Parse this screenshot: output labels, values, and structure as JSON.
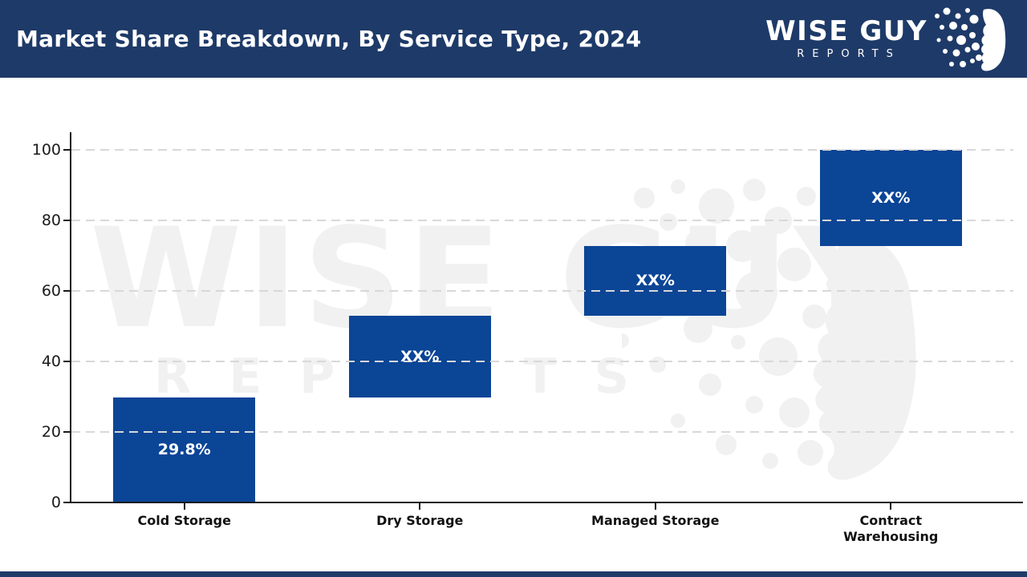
{
  "header": {
    "title": "Market Share Breakdown, By Service Type, 2024",
    "logo": {
      "wordmark": "WISE GUY",
      "subtext": "REPORTS"
    }
  },
  "watermark": {
    "wordmark": "WISE GUY",
    "subtext": "REPORTS"
  },
  "chart_data": {
    "type": "bar",
    "subtype": "waterfall",
    "title": "Market Share Breakdown, By Service Type, 2024",
    "categories": [
      "Cold Storage",
      "Dry Storage",
      "Managed Storage",
      "Contract Warehousing"
    ],
    "segments": [
      {
        "category": "Cold Storage",
        "start": 0,
        "end": 29.8,
        "label": "29.8%"
      },
      {
        "category": "Dry Storage",
        "start": 29.8,
        "end": 53.0,
        "label": "XX%"
      },
      {
        "category": "Managed Storage",
        "start": 53.0,
        "end": 72.8,
        "label": "XX%"
      },
      {
        "category": "Contract Warehousing",
        "start": 72.8,
        "end": 100,
        "label": "XX%"
      }
    ],
    "ylim": [
      0,
      100
    ],
    "yticks": [
      0,
      20,
      40,
      60,
      80,
      100
    ],
    "grid": {
      "horizontal": true,
      "style": "dashed",
      "color": "#d8d8d8",
      "above_bars": true
    },
    "legend": "none",
    "colors": {
      "bar": "#0b4596",
      "bar_label": "#ffffff",
      "axis": "#1a1a1a",
      "header_bg": "#1e3a68",
      "footer_bg": "#1e3a68",
      "watermark": "#f1f1f2"
    }
  }
}
